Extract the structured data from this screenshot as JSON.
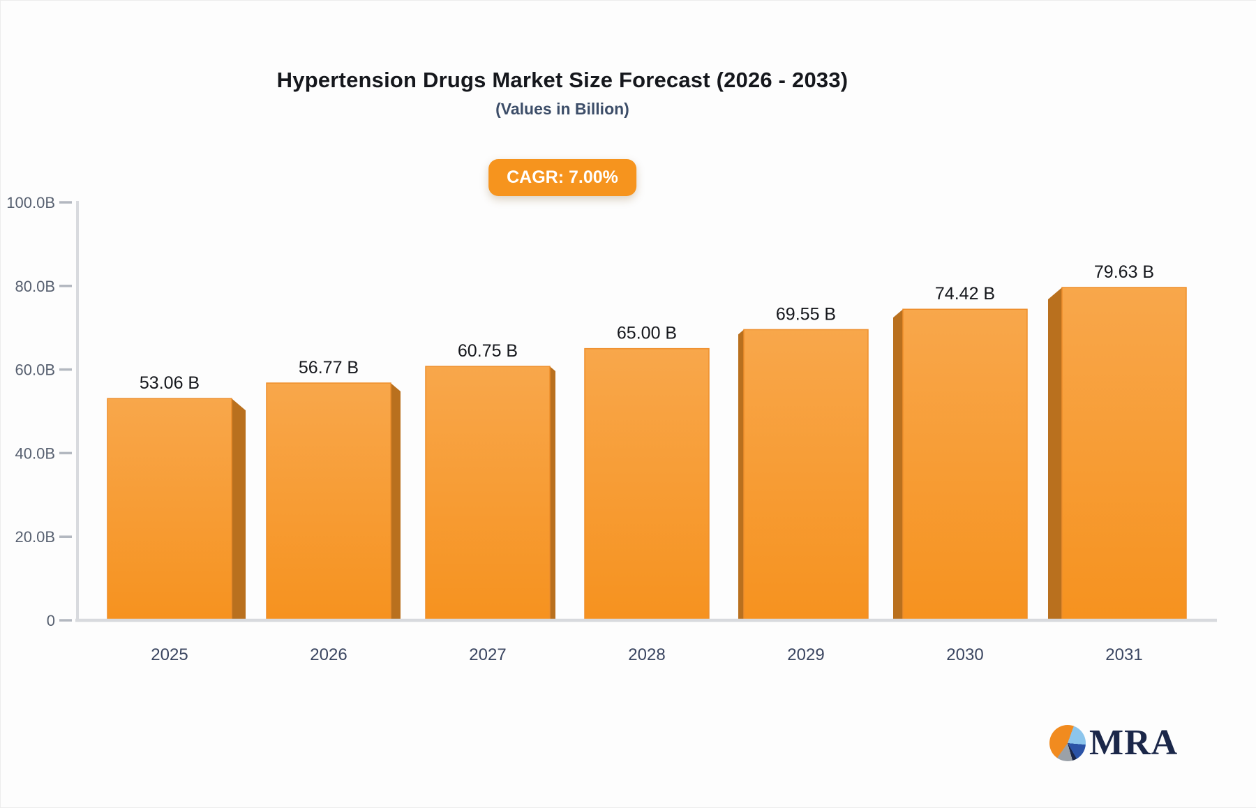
{
  "header": {
    "title": "Hypertension Drugs Market Size Forecast (2026 - 2033)",
    "subtitle": "(Values in Billion)"
  },
  "badge": {
    "label": "CAGR: 7.00%",
    "color": "#f6941e"
  },
  "chart_data": {
    "type": "bar",
    "title": "Hypertension Drugs Market Size Forecast (2026 - 2033)",
    "subtitle": "(Values in Billion)",
    "categories": [
      "2025",
      "2026",
      "2027",
      "2028",
      "2029",
      "2030",
      "2031"
    ],
    "values": [
      53.06,
      56.77,
      60.75,
      65.0,
      69.55,
      74.42,
      79.63
    ],
    "value_labels": [
      "53.06 B",
      "56.77 B",
      "60.75 B",
      "65.00 B",
      "69.55 B",
      "74.42 B",
      "79.63 B"
    ],
    "ytick_labels": [
      "0",
      "20.0B",
      "40.0B",
      "60.0B",
      "80.0B",
      "100.0B"
    ],
    "ytick_values": [
      0,
      20,
      40,
      60,
      80,
      100
    ],
    "ylim": [
      0,
      100
    ],
    "xlabel": "",
    "ylabel": "",
    "grid": false,
    "legend": false,
    "style_3d": true,
    "colors": {
      "bar_top": "#f8a74b",
      "bar_bottom": "#f6921f",
      "bar_edge": "#ee8e2b",
      "bar_side": "#b9701e",
      "axis_line": "#d8dade",
      "tick_dash": "#b3b8c0",
      "ytick_text": "#565f6f",
      "xtick_text": "#3a4560",
      "value_text": "#15171c"
    }
  },
  "logo": {
    "text": "MRA",
    "pie_icon": "pie-chart-icon",
    "navy": "#1b2749",
    "orange": "#f18b1f"
  }
}
